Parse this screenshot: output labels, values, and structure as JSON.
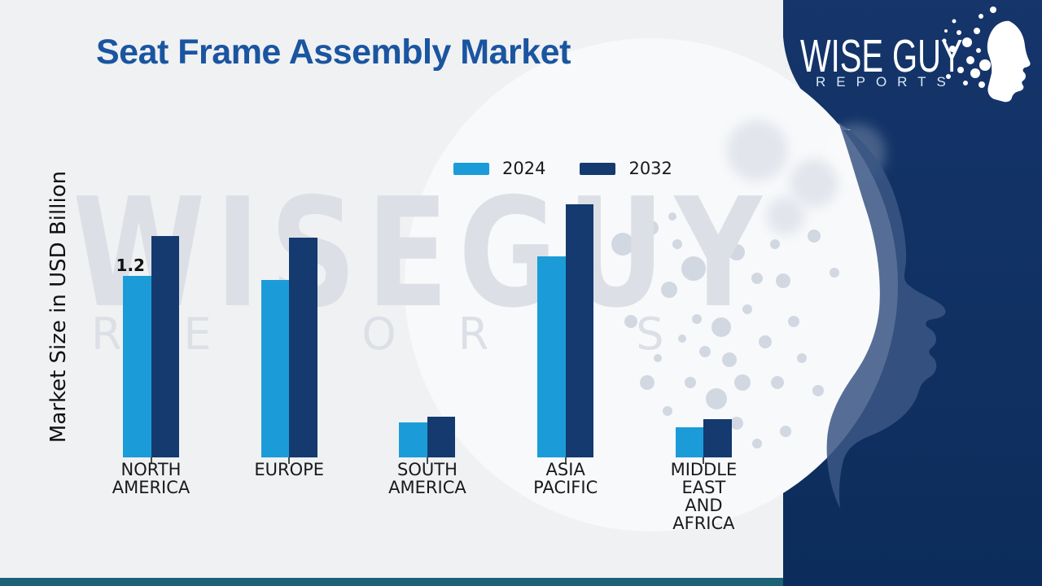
{
  "title": "Seat Frame Assembly Market",
  "logo": {
    "line1": "WISE GUY",
    "line2": "REPORTS"
  },
  "watermark": {
    "line1": "WISEGUY",
    "line2": "REPORTS"
  },
  "legend": [
    {
      "label": "2024",
      "color": "#1b9cd9"
    },
    {
      "label": "2032",
      "color": "#143a6f"
    }
  ],
  "chart_data": {
    "type": "bar",
    "categories": [
      [
        "NORTH",
        "AMERICA"
      ],
      [
        "EUROPE"
      ],
      [
        "SOUTH",
        "AMERICA"
      ],
      [
        "ASIA",
        "PACIFIC"
      ],
      [
        "MIDDLE",
        "EAST",
        "AND",
        "AFRICA"
      ]
    ],
    "series": [
      {
        "name": "2024",
        "color": "#1b9cd9",
        "values": [
          1.2,
          1.17,
          0.23,
          1.33,
          0.2
        ]
      },
      {
        "name": "2032",
        "color": "#143a6f",
        "values": [
          1.46,
          1.45,
          0.27,
          1.67,
          0.25
        ]
      }
    ],
    "ylabel": "Market Size in USD Billion",
    "xlabel": "",
    "ylim": [
      0,
      1.8
    ],
    "grid": false,
    "legend_position": "top",
    "annotations": [
      {
        "series": "2024",
        "category_index": 0,
        "text": "1.2"
      }
    ]
  },
  "colors": {
    "page_bg": "#f0f1f3",
    "navy_block": "#15356b",
    "navy_block_bottom": "#0c2d5b",
    "circle": "#f8f9fb",
    "bar_blue": "#1b9cd9",
    "bar_navy": "#143a6f",
    "teal_strip": "#1c6175",
    "title": "#1a55a0",
    "watermark": "#dce0e6",
    "text": "#1a1a1a"
  }
}
